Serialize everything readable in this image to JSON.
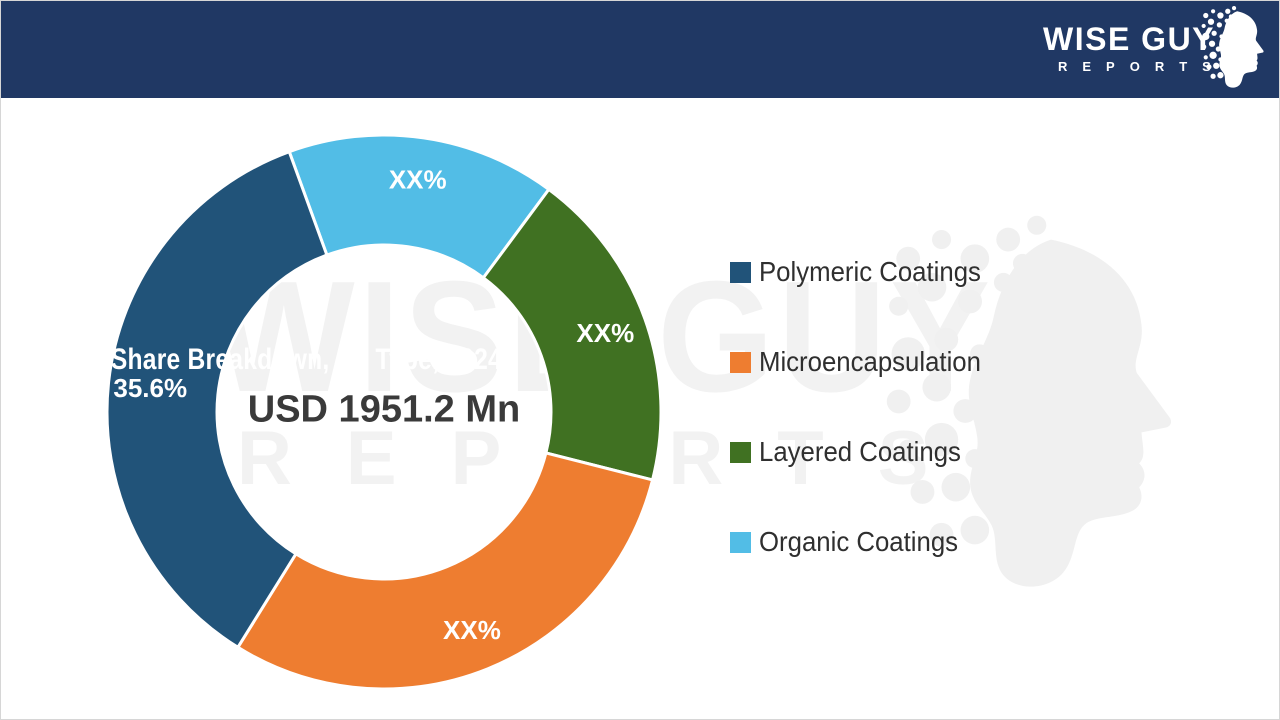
{
  "header": {
    "title": "Market Share Breakdown, By Type, 2024",
    "background_color": "#203864",
    "logo": {
      "line1": "WISE GUY",
      "line2": "REPORTS"
    }
  },
  "watermark": {
    "line1": "WISE GUY",
    "line2": "REPORTS"
  },
  "chart_data": {
    "type": "pie",
    "variant": "donut",
    "title": "Market Share Breakdown, By Type, 2024",
    "center_label": "USD 1951.2 Mn",
    "legend_position": "right",
    "start_angle_deg": -20,
    "draw_order": [
      "Organic Coatings",
      "Layered Coatings",
      "Microencapsulation",
      "Polymeric Coatings"
    ],
    "series": [
      {
        "name": "Polymeric Coatings",
        "value": 35.6,
        "label": "35.6%",
        "color": "#215379"
      },
      {
        "name": "Microencapsulation",
        "value": 29.9,
        "label": "XX%",
        "color": "#ee7d30"
      },
      {
        "name": "Layered Coatings",
        "value": 18.8,
        "label": "XX%",
        "color": "#407122"
      },
      {
        "name": "Organic Coatings",
        "value": 15.7,
        "label": "XX%",
        "color": "#52bde6"
      }
    ]
  }
}
